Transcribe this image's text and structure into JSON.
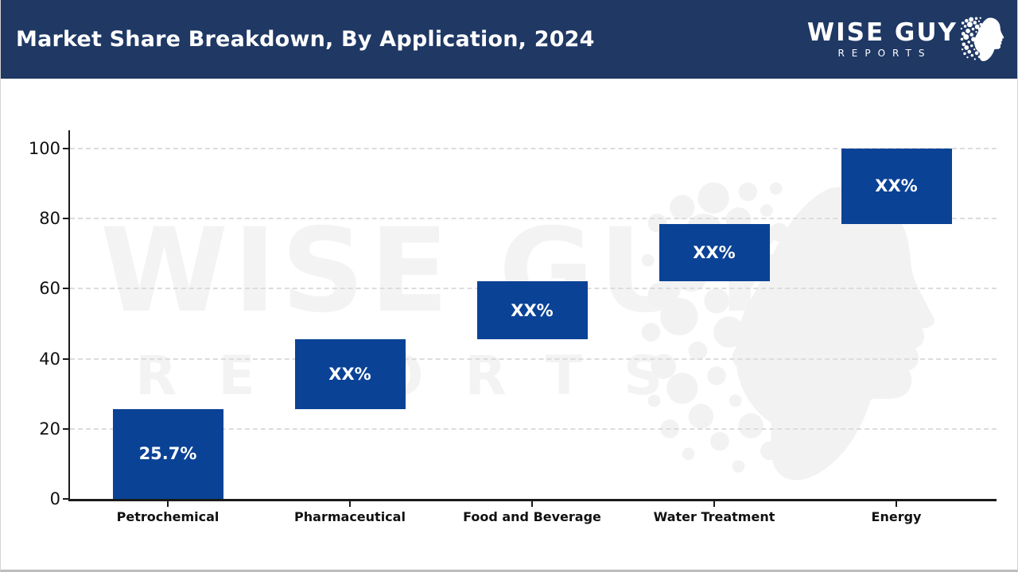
{
  "header": {
    "title": "Market Share Breakdown, By Application, 2024",
    "logo": {
      "brand": "WISE GUY",
      "sub": "REPORTS"
    }
  },
  "watermark": {
    "line1": "WISE GUY",
    "line2": "REPORTS"
  },
  "chart_data": {
    "type": "bar",
    "variant": "waterfall",
    "title": "Market Share Breakdown, By Application, 2024",
    "xlabel": "",
    "ylabel": "",
    "categories": [
      "Petrochemical",
      "Pharmaceutical",
      "Food and Beverage",
      "Water Treatment",
      "Energy"
    ],
    "segments": [
      {
        "category": "Petrochemical",
        "label": "25.7%",
        "start": 0,
        "end": 25.7
      },
      {
        "category": "Pharmaceutical",
        "label": "XX%",
        "start": 25.7,
        "end": 45.6
      },
      {
        "category": "Food and Beverage",
        "label": "XX%",
        "start": 45.6,
        "end": 62.1
      },
      {
        "category": "Water Treatment",
        "label": "XX%",
        "start": 62.1,
        "end": 78.5
      },
      {
        "category": "Energy",
        "label": "XX%",
        "start": 78.5,
        "end": 100
      }
    ],
    "ylim": [
      0,
      100
    ],
    "yticks": [
      0,
      20,
      40,
      60,
      80,
      100
    ],
    "grid": {
      "horizontal": true,
      "style": "dashed"
    },
    "legend": null
  },
  "colors": {
    "header_bg": "#1f3864",
    "bar_fill": "#0a4296",
    "bar_label": "#ffffff",
    "axis": "#1a1a1a",
    "grid": "#dcdcdc",
    "watermark": "#f3f3f3",
    "title_text": "#ffffff"
  }
}
